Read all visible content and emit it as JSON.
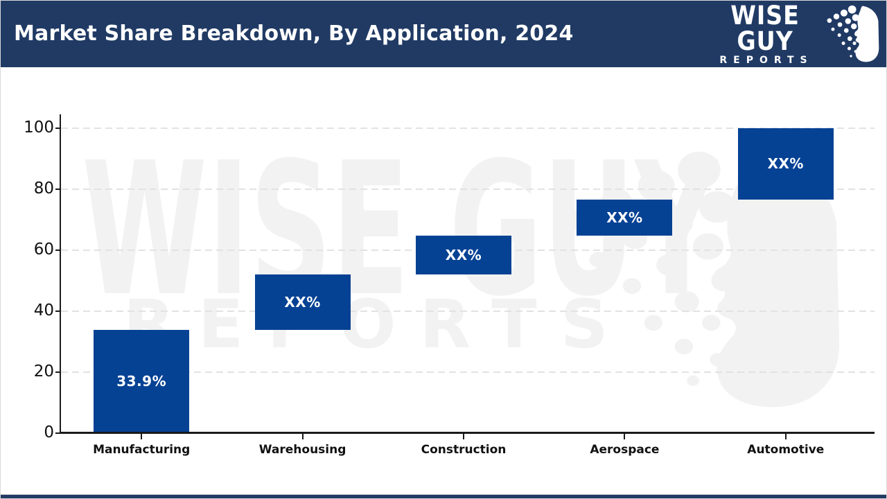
{
  "header": {
    "title": "Market Share Breakdown, By Application, 2024",
    "logo_line1": "WISE GUY",
    "logo_line2": "REPORTS"
  },
  "watermark": {
    "line1": "WISE GUY",
    "line2": "REPORTS"
  },
  "colors": {
    "header_bg": "#203a64",
    "footer_bg": "#203a64",
    "bar": "#064294",
    "bar_label": "#ffffff",
    "grid": "#e2e2e2",
    "axis": "#1a1a1a",
    "watermark": "#f2f2f2",
    "title_text": "#ffffff"
  },
  "chart_data": {
    "type": "bar",
    "subtype": "waterfall",
    "title": "Market Share Breakdown, By Application, 2024",
    "xlabel": "",
    "ylabel": "",
    "categories": [
      "Manufacturing",
      "Warehousing",
      "Construction",
      "Aerospace",
      "Automotive"
    ],
    "segments": [
      {
        "category": "Manufacturing",
        "start": 0,
        "end": 33.9,
        "label": "33.9%"
      },
      {
        "category": "Warehousing",
        "start": 33.9,
        "end": 52.0,
        "label": "XX%"
      },
      {
        "category": "Construction",
        "start": 52.0,
        "end": 64.8,
        "label": "XX%"
      },
      {
        "category": "Aerospace",
        "start": 64.8,
        "end": 76.6,
        "label": "XX%"
      },
      {
        "category": "Automotive",
        "start": 76.6,
        "end": 100,
        "label": "XX%"
      }
    ],
    "yticks": [
      0,
      20,
      40,
      60,
      80,
      100
    ],
    "ylim": [
      0,
      104
    ],
    "grid": "horizontal-dashed",
    "legend_position": "none",
    "bar_labels_inside": true
  }
}
